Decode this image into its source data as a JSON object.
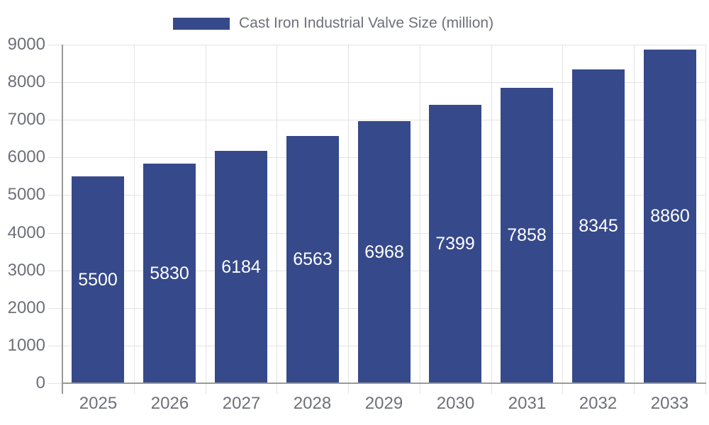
{
  "legend": {
    "label": "Cast Iron Industrial Valve Size (million)"
  },
  "chart_data": {
    "type": "bar",
    "title": "Cast Iron Industrial Valve Size (million)",
    "series_name": "Cast Iron Industrial Valve Size (million)",
    "categories": [
      "2025",
      "2026",
      "2027",
      "2028",
      "2029",
      "2030",
      "2031",
      "2032",
      "2033"
    ],
    "values": [
      5500,
      5830,
      6184,
      6563,
      6968,
      7399,
      7858,
      8345,
      8860
    ],
    "xlabel": "",
    "ylabel": "",
    "ylim": [
      0,
      9000
    ],
    "yticks": [
      0,
      1000,
      2000,
      3000,
      4000,
      5000,
      6000,
      7000,
      8000,
      9000
    ],
    "grid": true,
    "legend_position": "top-center",
    "value_labels": "inside-center",
    "colors": {
      "bar": "#36498A",
      "bar_label": "#ffffff",
      "axis_text": "#6E7079",
      "gridline": "#E3E3E3",
      "axis_line": "#999999",
      "background": "#ffffff"
    }
  }
}
